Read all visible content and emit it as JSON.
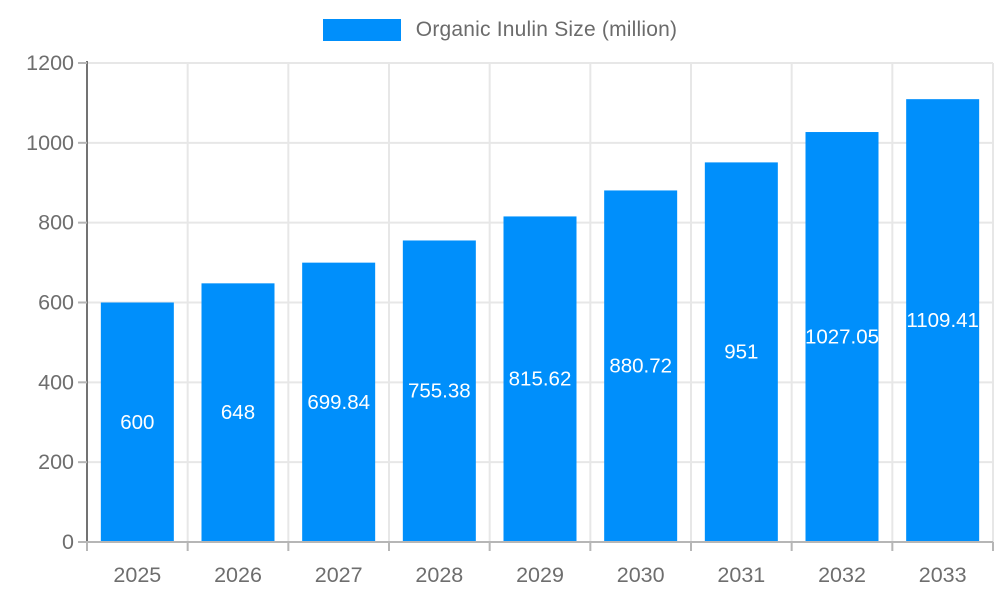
{
  "legend": {
    "label": "Organic Inulin Size (million)",
    "swatch_color": "#008FFB"
  },
  "chart_data": {
    "type": "bar",
    "title": "Organic Inulin Size (million)",
    "xlabel": "",
    "ylabel": "",
    "categories": [
      "2025",
      "2026",
      "2027",
      "2028",
      "2029",
      "2030",
      "2031",
      "2032",
      "2033"
    ],
    "series": [
      {
        "name": "Organic Inulin Size (million)",
        "values": [
          600,
          648,
          699.84,
          755.38,
          815.62,
          880.72,
          951,
          1027.05,
          1109.41
        ]
      }
    ],
    "data_labels": [
      "600",
      "648",
      "699.84",
      "755.38",
      "815.62",
      "880.72",
      "951",
      "1027.05",
      "1109.41"
    ],
    "ylim": [
      0,
      1200
    ],
    "yticks": [
      0,
      200,
      400,
      600,
      800,
      1000,
      1200
    ],
    "grid": "both",
    "legend_position": "top",
    "colors": {
      "bar": "#008FFB",
      "data_label": "#ffffff",
      "grid": "#e7e7e7",
      "axis_text": "#6e6e6e",
      "x_axis_line": "#b6b6b6",
      "y_axis_line": "#737373",
      "tick": "#b6b6b6"
    }
  }
}
